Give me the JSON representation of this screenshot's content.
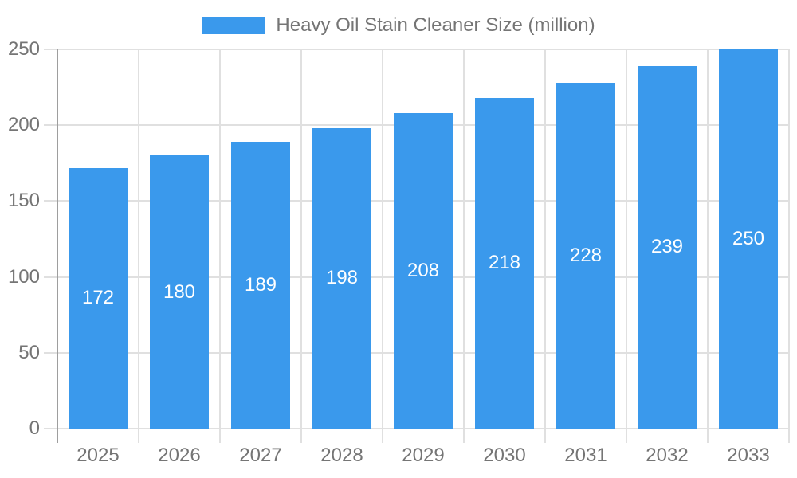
{
  "chart_data": {
    "type": "bar",
    "title": "Heavy Oil Stain Cleaner Size (million)",
    "legend_position": "top",
    "categories": [
      "2025",
      "2026",
      "2027",
      "2028",
      "2029",
      "2030",
      "2031",
      "2032",
      "2033"
    ],
    "values": [
      172,
      180,
      189,
      198,
      208,
      218,
      228,
      239,
      250
    ],
    "series_name": "Heavy Oil Stain Cleaner Size (million)",
    "xlabel": "",
    "ylabel": "",
    "ylim": [
      0,
      250
    ],
    "y_ticks": [
      0,
      50,
      100,
      150,
      200,
      250
    ],
    "grid": true,
    "bar_color": "#3A99EC",
    "bar_label_color": "#ffffff",
    "axis_text_color": "#757575",
    "gridline_color": "#e0e0e0",
    "axis_line_color": "#9e9e9e",
    "background_color": "#ffffff"
  }
}
